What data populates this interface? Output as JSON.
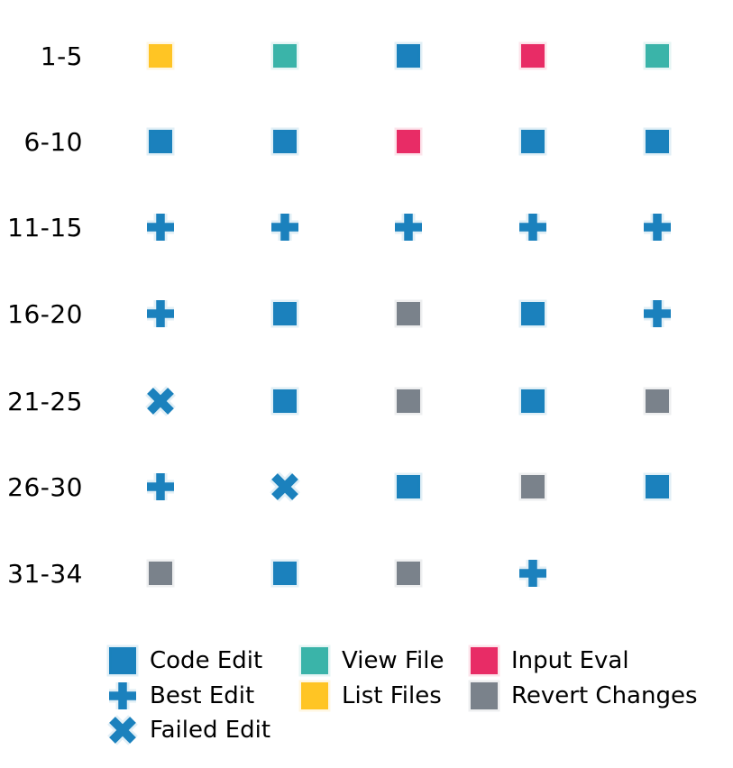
{
  "chart_data": {
    "type": "scatter",
    "title": "",
    "grid": "off",
    "legend_position": "bottom",
    "marker_defs": {
      "code_edit": {
        "shape": "square",
        "color": "#1b81bd",
        "label": "Code Edit"
      },
      "view_file": {
        "shape": "square",
        "color": "#3ab4a9",
        "label": "View File"
      },
      "input_eval": {
        "shape": "square",
        "color": "#e82c66",
        "label": "Input Eval"
      },
      "best_edit": {
        "shape": "plus",
        "color": "#1b81bd",
        "label": "Best Edit"
      },
      "list_files": {
        "shape": "square",
        "color": "#ffc524",
        "label": "List Files"
      },
      "revert_changes": {
        "shape": "square",
        "color": "#7a828b",
        "label": "Revert Changes"
      },
      "failed_edit": {
        "shape": "x",
        "color": "#1b81bd",
        "label": "Failed Edit"
      }
    },
    "rows": [
      {
        "label": "1-5",
        "markers": [
          "list_files",
          "view_file",
          "code_edit",
          "input_eval",
          "view_file"
        ]
      },
      {
        "label": "6-10",
        "markers": [
          "code_edit",
          "code_edit",
          "input_eval",
          "code_edit",
          "code_edit"
        ]
      },
      {
        "label": "11-15",
        "markers": [
          "best_edit",
          "best_edit",
          "best_edit",
          "best_edit",
          "best_edit"
        ]
      },
      {
        "label": "16-20",
        "markers": [
          "best_edit",
          "code_edit",
          "revert_changes",
          "code_edit",
          "best_edit"
        ]
      },
      {
        "label": "21-25",
        "markers": [
          "failed_edit",
          "code_edit",
          "revert_changes",
          "code_edit",
          "revert_changes"
        ]
      },
      {
        "label": "26-30",
        "markers": [
          "best_edit",
          "failed_edit",
          "code_edit",
          "revert_changes",
          "code_edit"
        ]
      },
      {
        "label": "31-34",
        "markers": [
          "revert_changes",
          "code_edit",
          "revert_changes",
          "best_edit",
          null
        ]
      }
    ],
    "legend": {
      "rows": [
        [
          "code_edit",
          "view_file",
          "input_eval"
        ],
        [
          "best_edit",
          "list_files",
          "revert_changes"
        ],
        [
          "failed_edit"
        ]
      ]
    },
    "layout": {
      "col_centers": [
        178,
        316,
        453,
        591,
        729
      ],
      "row_centers": [
        62,
        157,
        252,
        348,
        445,
        540,
        636
      ],
      "label_right": 92,
      "plot_square_size": 26,
      "legend_square_size": 30,
      "legend_marker_x": [
        136,
        349,
        537
      ],
      "legend_row_y": [
        733,
        772,
        810
      ],
      "legend_text_offset": 30
    }
  }
}
